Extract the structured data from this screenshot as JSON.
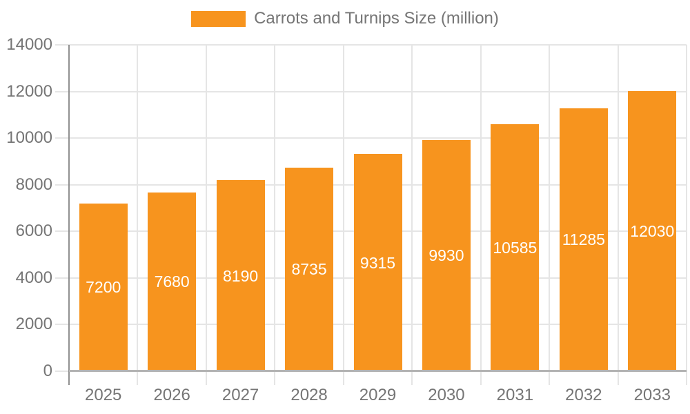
{
  "legend": {
    "label": "Carrots and Turnips Size (million)"
  },
  "chart_data": {
    "type": "bar",
    "title": "Carrots and Turnips Size (million)",
    "categories": [
      "2025",
      "2026",
      "2027",
      "2028",
      "2029",
      "2030",
      "2031",
      "2032",
      "2033"
    ],
    "values": [
      7200,
      7680,
      8190,
      8735,
      9315,
      9930,
      10585,
      11285,
      12030
    ],
    "series": [
      {
        "name": "Carrots and Turnips Size (million)",
        "values": [
          7200,
          7680,
          8190,
          8735,
          9315,
          9930,
          10585,
          11285,
          12030
        ]
      }
    ],
    "bar_value_labels": [
      "7200",
      "7680",
      "8190",
      "8735",
      "9315",
      "9930",
      "10585",
      "11285",
      "12030"
    ],
    "xlabel": "",
    "ylabel": "",
    "ylim": [
      0,
      14000
    ],
    "yticks": [
      0,
      2000,
      4000,
      6000,
      8000,
      10000,
      12000,
      14000
    ],
    "ytick_labels": [
      "0",
      "2000",
      "4000",
      "6000",
      "8000",
      "10000",
      "12000",
      "14000"
    ],
    "grid": true,
    "legend_position": "top-center",
    "value_label_position": "inside-center",
    "colors": {
      "bar": "#F7941E",
      "bar_value_label": "#FFFFFF",
      "axis_text": "#757575",
      "grid_line": "#E5E5E5",
      "y_axis_line": "#909090",
      "x_axis_line": "#B3B3B3",
      "background": "#FFFFFF"
    }
  }
}
